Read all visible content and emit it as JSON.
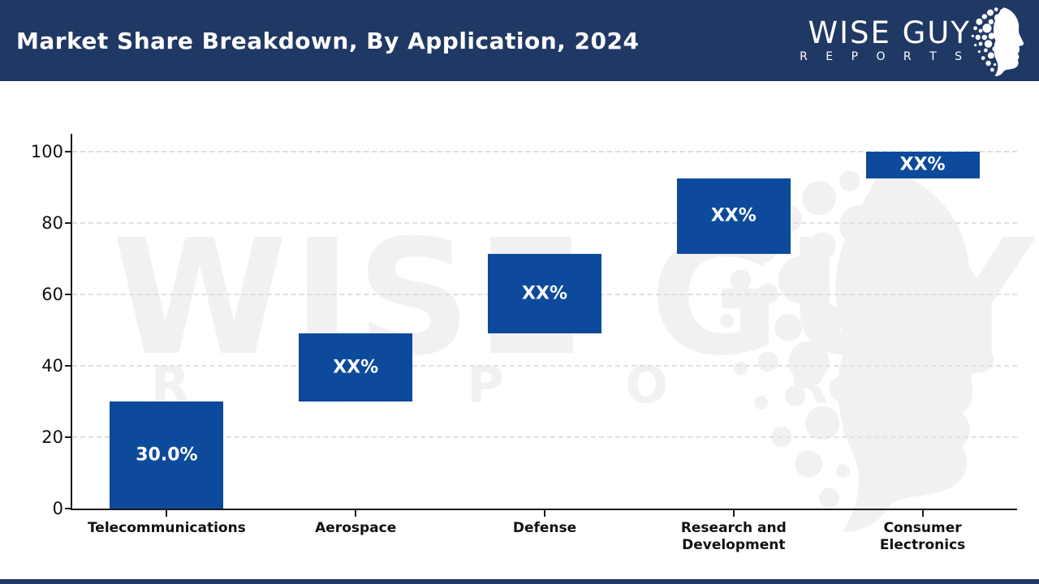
{
  "header": {
    "title": "Market Share Breakdown, By Application, 2024",
    "logo": {
      "name": "WISE GUY",
      "tagline": "R E P O R T S"
    }
  },
  "watermark": {
    "line1": "WISE GUY",
    "line2": "R E P O R T S"
  },
  "colors": {
    "header_bg": "#203864",
    "footer_bg": "#203864",
    "bar": "#0d4a9c",
    "bar_label": "#ffffff",
    "grid": "#e0e0e0",
    "axis": "#1a1a1a",
    "watermark": "#f1f1f4"
  },
  "chart_data": {
    "type": "bar",
    "variant": "waterfall",
    "title": "Market Share Breakdown, By Application, 2024",
    "unit": "percent",
    "categories": [
      "Telecommunications",
      "Aerospace",
      "Defense",
      "Research and\nDevelopment",
      "Consumer\nElectronics"
    ],
    "series": [
      {
        "category": "Telecommunications",
        "start": 0,
        "end": 30,
        "value": 30.0,
        "label": "30.0%"
      },
      {
        "category": "Aerospace",
        "start": 30,
        "end": 49,
        "value": 19.0,
        "label": "XX%"
      },
      {
        "category": "Defense",
        "start": 49,
        "end": 71.4,
        "value": 22.4,
        "label": "XX%"
      },
      {
        "category": "Research and Development",
        "start": 71.4,
        "end": 92.6,
        "value": 21.2,
        "label": "XX%"
      },
      {
        "category": "Consumer Electronics",
        "start": 92.6,
        "end": 100,
        "value": 7.4,
        "label": "XX%"
      }
    ],
    "xlabel": "",
    "ylabel": "",
    "yticks": [
      0,
      20,
      40,
      60,
      80,
      100
    ],
    "ylim": [
      0,
      105
    ],
    "grid": "horizontal-dashed",
    "legend": "none"
  }
}
